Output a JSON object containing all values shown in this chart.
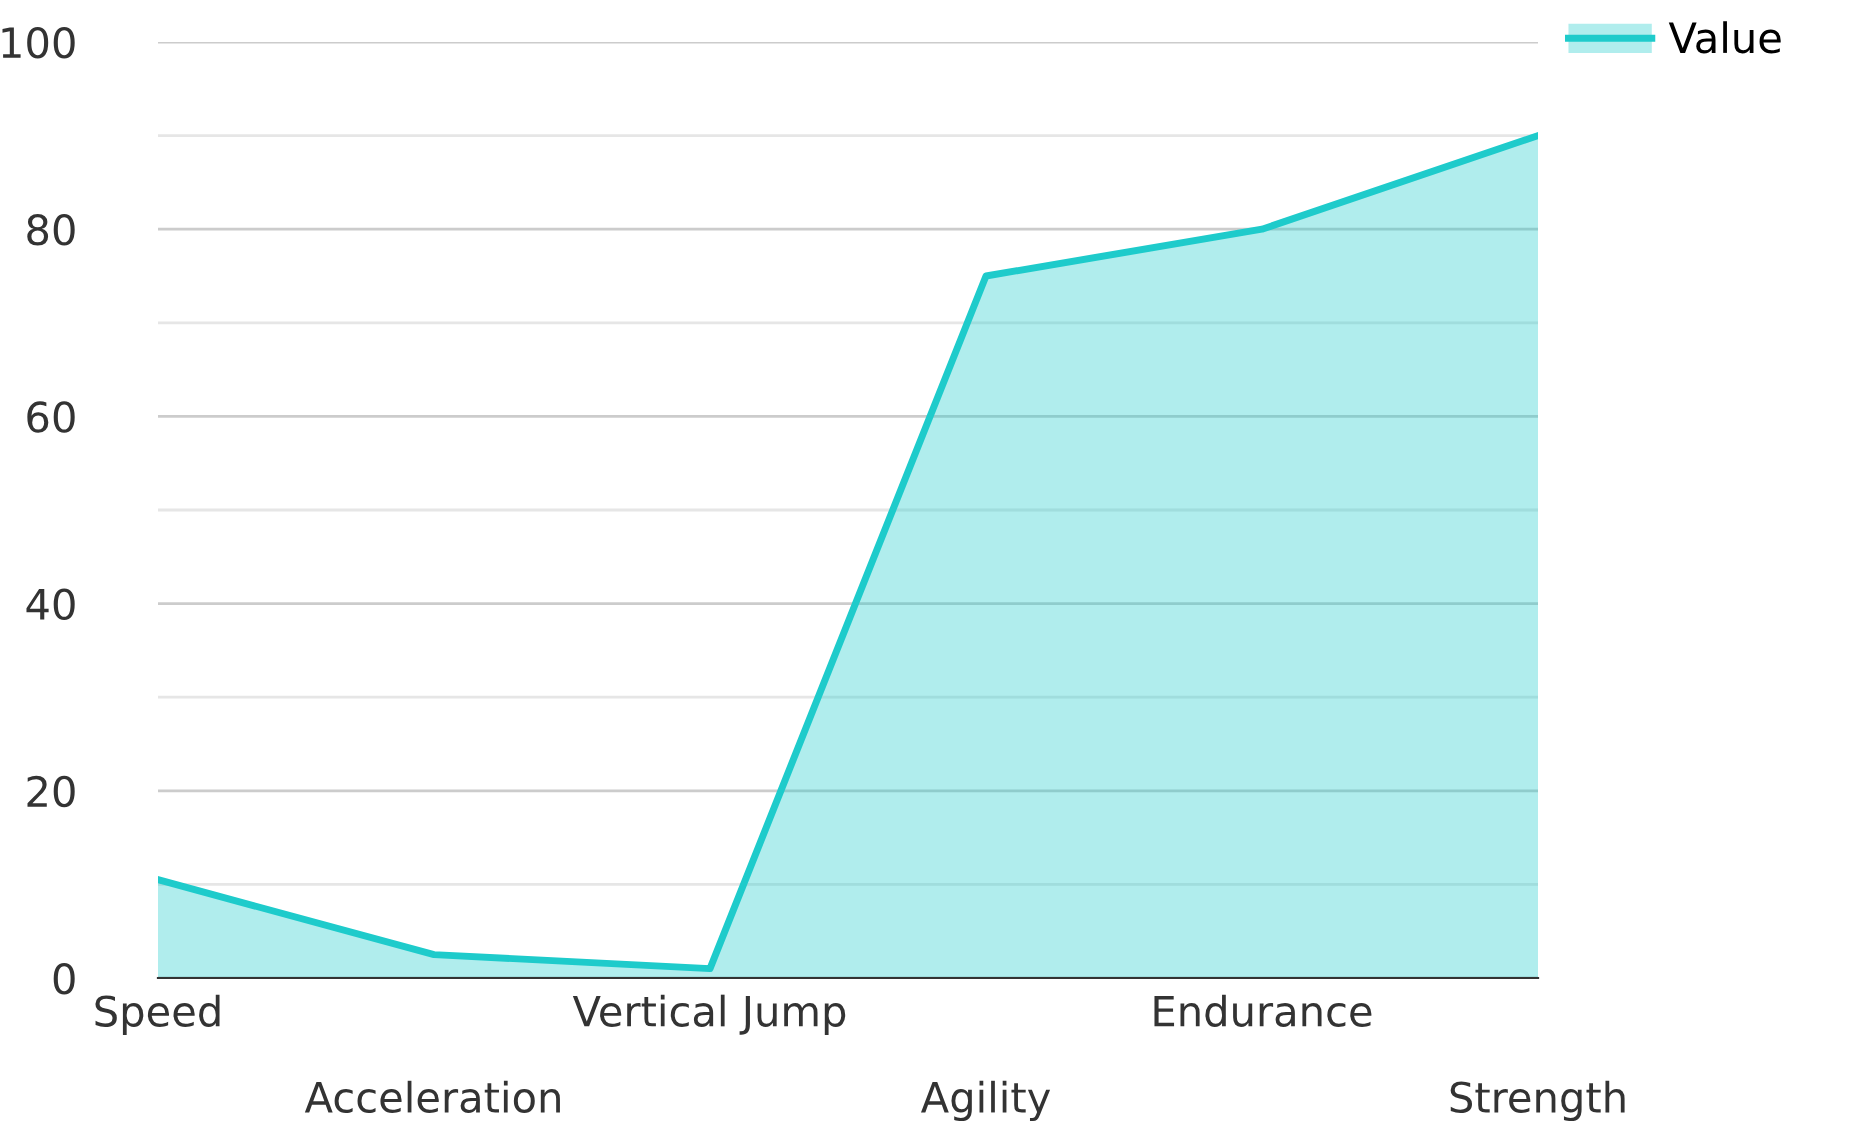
{
  "chart_data": {
    "type": "area",
    "categories": [
      "Speed",
      "Acceleration",
      "Vertical Jump",
      "Agility",
      "Endurance",
      "Strength"
    ],
    "series": [
      {
        "name": "Value",
        "color": "#1ecbcb",
        "values": [
          10.5,
          2.5,
          1,
          75,
          80,
          90
        ]
      }
    ],
    "ylim": [
      0,
      100
    ],
    "yticks": [
      0,
      {
        "value": 10,
        "label": null
      },
      20,
      {
        "value": 30,
        "label": null
      },
      40,
      {
        "value": 50,
        "label": null
      },
      60,
      {
        "value": 70,
        "label": null
      },
      80,
      {
        "value": 90,
        "label": null
      },
      100
    ],
    "grid": "y",
    "legend": "top right"
  }
}
